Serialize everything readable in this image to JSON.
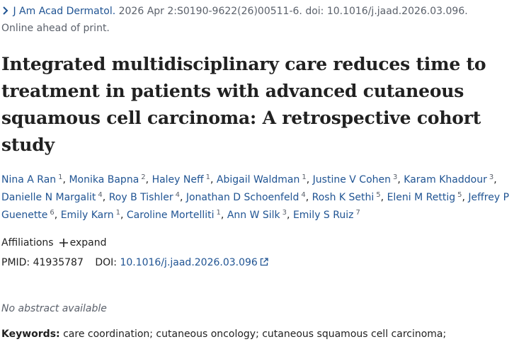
{
  "citation": {
    "journal": "J Am Acad Dermatol.",
    "details": "2026 Apr 2:S0190-9622(26)00511-6. doi: 10.1016/j.jaad.2026.03.096.",
    "status": "Online ahead of print."
  },
  "title": "Integrated multidisciplinary care reduces time to treatment in patients with advanced cutaneous squamous cell carcinoma: A retrospective cohort study",
  "author_separator": ",",
  "authors": [
    {
      "name": "Nina A Ran",
      "affiliation": "1"
    },
    {
      "name": "Monika Bapna",
      "affiliation": "2"
    },
    {
      "name": "Haley Neff",
      "affiliation": "1"
    },
    {
      "name": "Abigail Waldman",
      "affiliation": "1"
    },
    {
      "name": "Justine V Cohen",
      "affiliation": "3"
    },
    {
      "name": "Karam Khaddour",
      "affiliation": "3"
    },
    {
      "name": "Danielle N Margalit",
      "affiliation": "4"
    },
    {
      "name": "Roy B Tishler",
      "affiliation": "4"
    },
    {
      "name": "Jonathan D Schoenfeld",
      "affiliation": "4"
    },
    {
      "name": "Rosh K Sethi",
      "affiliation": "5"
    },
    {
      "name": "Eleni M Rettig",
      "affiliation": "5"
    },
    {
      "name": "Jeffrey P Guenette",
      "affiliation": "6"
    },
    {
      "name": "Emily Karn",
      "affiliation": "1"
    },
    {
      "name": "Caroline Mortelliti",
      "affiliation": "1"
    },
    {
      "name": "Ann W Silk",
      "affiliation": "3"
    },
    {
      "name": "Emily S Ruiz",
      "affiliation": "7"
    }
  ],
  "affiliations": {
    "label": "Affiliations",
    "toggle": "expand"
  },
  "identifiers": {
    "pmid_label": "PMID:",
    "pmid": "41935787",
    "doi_label": "DOI:",
    "doi": "10.1016/j.jaad.2026.03.096"
  },
  "abstract": "No abstract available",
  "keywords": {
    "label": "Keywords:",
    "text": "care coordination; cutaneous oncology; cutaneous squamous cell carcinoma;"
  }
}
